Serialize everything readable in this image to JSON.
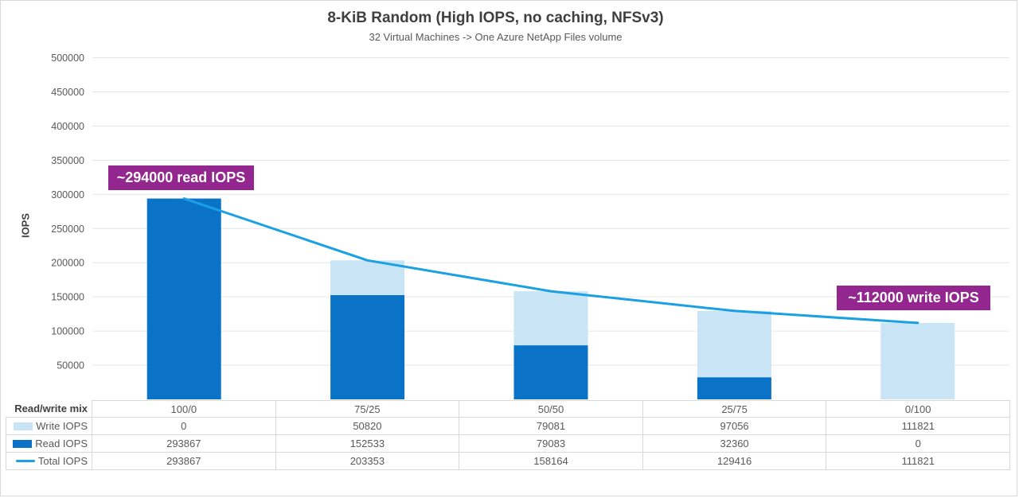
{
  "header": {
    "title": "8-KiB Random (High IOPS, no caching, NFSv3)",
    "subtitle": "32 Virtual Machines -> One Azure NetApp Files volume"
  },
  "y_axis": {
    "title": "IOPS"
  },
  "annotations": [
    {
      "text": "~294000 read IOPS"
    },
    {
      "text": "~112000 write IOPS"
    }
  ],
  "colors": {
    "read_bar": "#0a73c8",
    "write_bar": "#c8e4f5",
    "total_line": "#1aa0e3",
    "annotation_bg": "#93278f",
    "gridline": "#e6e6e6",
    "table_border": "#d9d9d9"
  },
  "chart_data": {
    "type": "bar",
    "subtype": "stacked-bar-with-line",
    "title": "8-KiB Random (High IOPS, no caching, NFSv3)",
    "subtitle": "32 Virtual Machines -> One Azure NetApp Files volume",
    "xlabel_header": "Read/write mix",
    "ylabel": "IOPS",
    "categories": [
      "100/0",
      "75/25",
      "50/50",
      "25/75",
      "0/100"
    ],
    "series": [
      {
        "name": "Write IOPS",
        "kind": "bar",
        "swatch": "rect",
        "color": "#c8e4f5",
        "values": [
          0,
          50820,
          79081,
          97056,
          111821
        ]
      },
      {
        "name": "Read IOPS",
        "kind": "bar",
        "swatch": "rect",
        "color": "#0a73c8",
        "values": [
          293867,
          152533,
          79083,
          32360,
          0
        ]
      },
      {
        "name": "Total IOPS",
        "kind": "line",
        "swatch": "line",
        "color": "#1aa0e3",
        "values": [
          293867,
          203353,
          158164,
          129416,
          111821
        ]
      }
    ],
    "stacked": true,
    "ylim": [
      0,
      500000
    ],
    "ytick_step": 50000,
    "grid": true,
    "legend_position": "table-left"
  }
}
